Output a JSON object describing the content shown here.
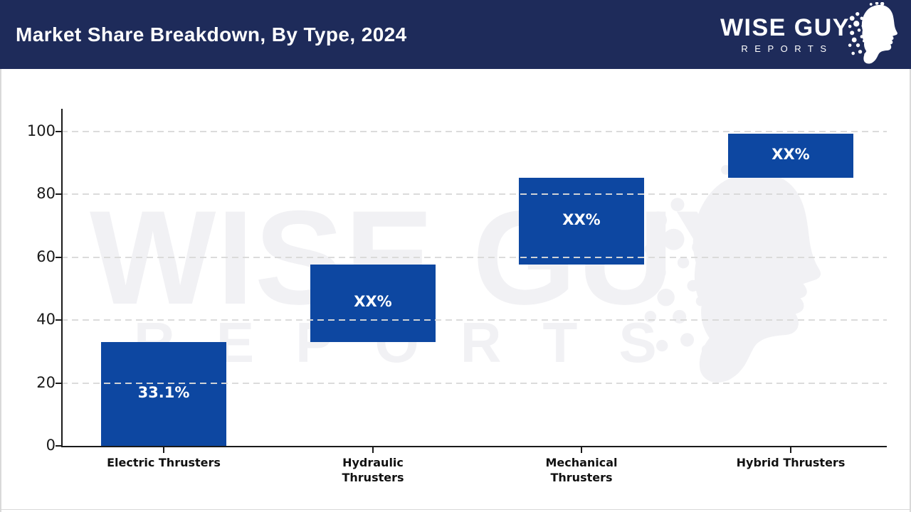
{
  "header": {
    "title": "Market Share Breakdown, By Type, 2024",
    "logo": {
      "name": "WISE GUY",
      "subtitle": "REPORTS"
    }
  },
  "watermark": {
    "line1": "WISE GUY",
    "line2": "REPORTS"
  },
  "chart_data": {
    "type": "bar",
    "variant": "waterfall",
    "title": "Market Share Breakdown, By Type, 2024",
    "categories": [
      "Electric Thrusters",
      "Hydraulic\nThrusters",
      "Mechanical\nThrusters",
      "Hybrid Thrusters"
    ],
    "segments": [
      {
        "category": "Electric Thrusters",
        "label": "33.1%",
        "start": 0,
        "end": 33.1
      },
      {
        "category": "Hydraulic Thrusters",
        "label": "XX%",
        "start": 33.1,
        "end": 57.8
      },
      {
        "category": "Mechanical Thrusters",
        "label": "XX%",
        "start": 57.8,
        "end": 85.2
      },
      {
        "category": "Hybrid Thrusters",
        "label": "XX%",
        "start": 85.2,
        "end": 99.4
      }
    ],
    "xlabel": "",
    "ylabel": "",
    "ylim": [
      0,
      100
    ],
    "yticks": [
      0,
      20,
      40,
      60,
      80,
      100
    ],
    "grid": "horizontal-dashed",
    "legend": "none",
    "bar_color": "#0d47a1",
    "label_color": "#ffffff"
  },
  "colors": {
    "header_bg": "#1e2b5a",
    "bar": "#0d47a1",
    "grid": "#d9d9d9",
    "axis": "#1a1a1a",
    "watermark": "#f1f1f4",
    "border": "#d9d9d9"
  }
}
